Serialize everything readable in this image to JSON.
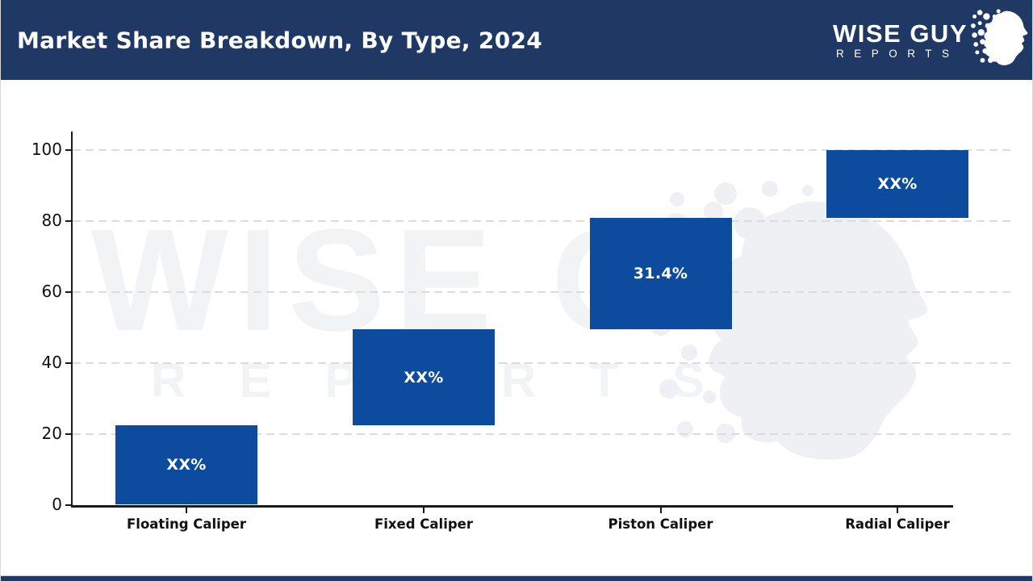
{
  "header": {
    "title": "Market Share Breakdown, By Type, 2024",
    "background_color": "#1f3864",
    "logo": {
      "line1": "WISE GUY",
      "line2": "REPORTS",
      "head_icon": "dotted-head-profile-icon"
    }
  },
  "watermark": {
    "line1": "WISE GUY",
    "line2": "REPORTS",
    "head_icon": "dotted-head-profile-watermark"
  },
  "chart_data": {
    "type": "bar",
    "subtype": "floating-waterfall",
    "title": "Market Share Breakdown, By Type, 2024",
    "categories": [
      "Floating Caliper",
      "Fixed Caliper",
      "Piston Caliper",
      "Radial Caliper"
    ],
    "segments": [
      {
        "category": "Floating Caliper",
        "start": 0,
        "end": 22.4,
        "label": "XX%"
      },
      {
        "category": "Fixed Caliper",
        "start": 22.4,
        "end": 49.4,
        "label": "XX%"
      },
      {
        "category": "Piston Caliper",
        "start": 49.4,
        "end": 80.8,
        "label": "31.4%"
      },
      {
        "category": "Radial Caliper",
        "start": 80.8,
        "end": 100,
        "label": "XX%"
      }
    ],
    "yticks": [
      0,
      20,
      40,
      60,
      80,
      100
    ],
    "ylim": [
      0,
      105
    ],
    "xlabel": "",
    "ylabel": "",
    "grid": "horizontal-dashed",
    "bar_color": "#0c4b9e",
    "bar_label_color": "#ffffff",
    "axis_color": "#1a1a1a",
    "legend": "none"
  }
}
